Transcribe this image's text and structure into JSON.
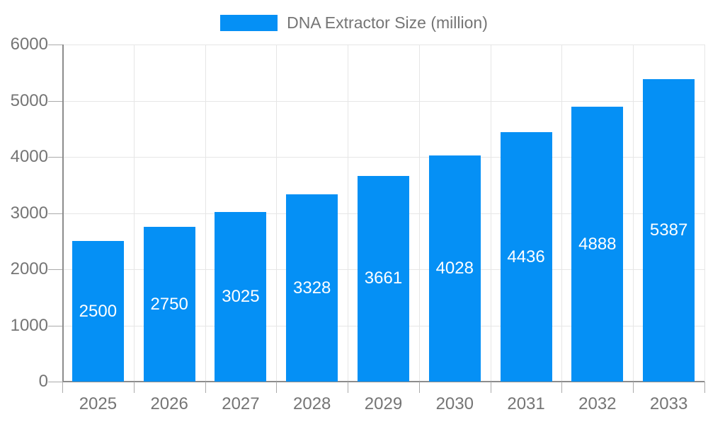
{
  "chart_data": {
    "type": "bar",
    "title": "DNA Extractor Size (million)",
    "categories": [
      "2025",
      "2026",
      "2027",
      "2028",
      "2029",
      "2030",
      "2031",
      "2032",
      "2033"
    ],
    "values": [
      2500,
      2750,
      3025,
      3328,
      3661,
      4028,
      4436,
      4888,
      5387
    ],
    "xlabel": "",
    "ylabel": "",
    "ylim": [
      0,
      6000
    ],
    "y_ticks": [
      0,
      1000,
      2000,
      3000,
      4000,
      5000,
      6000
    ],
    "grid": true,
    "legend_position": "top",
    "bar_width_ratio": 0.72,
    "colors": {
      "bar": "#0590f5",
      "grid": "#e6e6e6",
      "axis": "#8c8c8c",
      "tick": "#aaaaaa",
      "text": "#757575",
      "value_label": "#ffffff",
      "background": "#ffffff"
    }
  }
}
